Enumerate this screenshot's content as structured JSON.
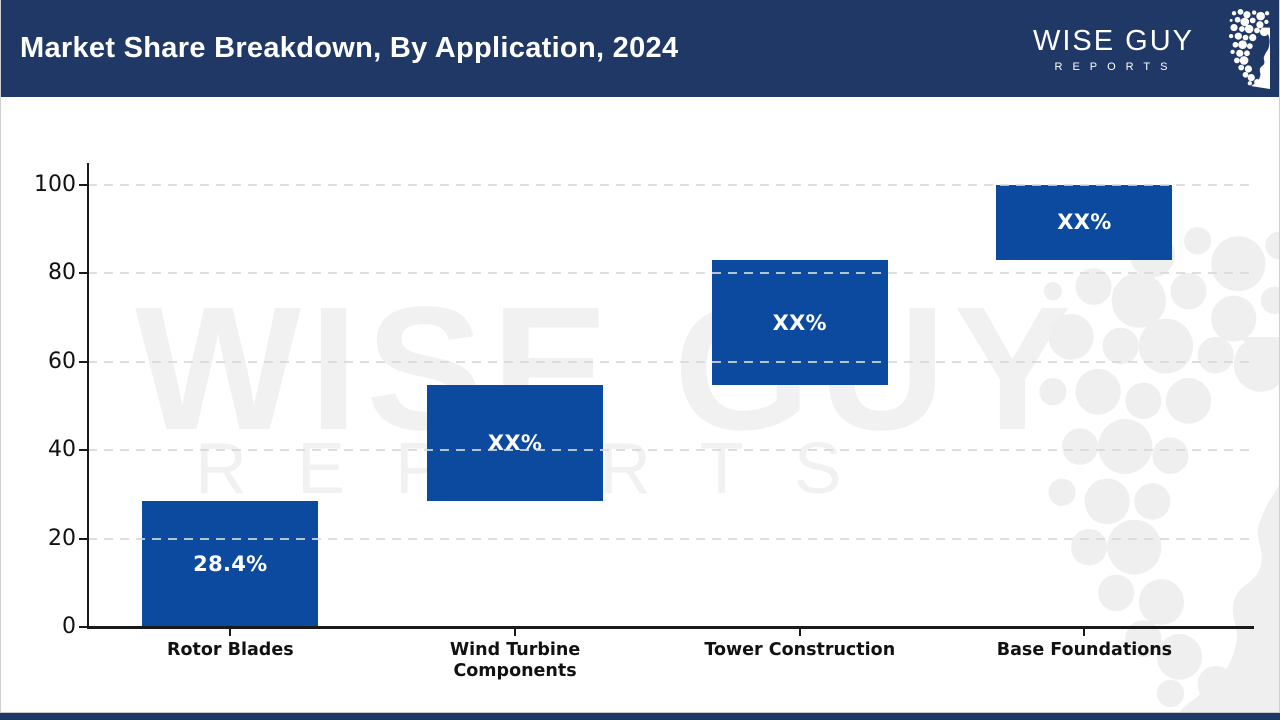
{
  "header": {
    "title": "Market Share Breakdown, By Application, 2024",
    "logo": {
      "line1": "WISE GUY",
      "line2": "REPORTS"
    }
  },
  "watermark": {
    "line1": "WISE GUY",
    "line2": "REPORTS"
  },
  "colors": {
    "header_bg": "#1f3866",
    "footer_bg": "#1f3866",
    "bar": "#0b4a9e",
    "bar_label": "#ffffff",
    "grid": "#d8d8d8",
    "axis": "#1a1a1a",
    "tick_label": "#111111",
    "category_label": "#111111",
    "watermark": "#f1f1f1",
    "logo_text": "#ffffff"
  },
  "chart_data": {
    "type": "bar",
    "subtype": "waterfall",
    "title": "Market Share Breakdown, By Application, 2024",
    "categories": [
      "Rotor Blades",
      "Wind Turbine\nComponents",
      "Tower Construction",
      "Base Foundations"
    ],
    "segments": [
      {
        "category": "Rotor Blades",
        "start": 0,
        "end": 28.4,
        "label": "28.4%"
      },
      {
        "category": "Wind Turbine Components",
        "start": 28.4,
        "end": 54.6,
        "label": "XX%"
      },
      {
        "category": "Tower Construction",
        "start": 54.6,
        "end": 83,
        "label": "XX%"
      },
      {
        "category": "Base Foundations",
        "start": 83,
        "end": 100,
        "label": "XX%"
      }
    ],
    "yticks": [
      0,
      20,
      40,
      60,
      80,
      100
    ],
    "ylim": [
      0,
      105
    ],
    "xlabel": "",
    "ylabel": "",
    "grid": "horizontal-dashed",
    "legend": "none"
  }
}
